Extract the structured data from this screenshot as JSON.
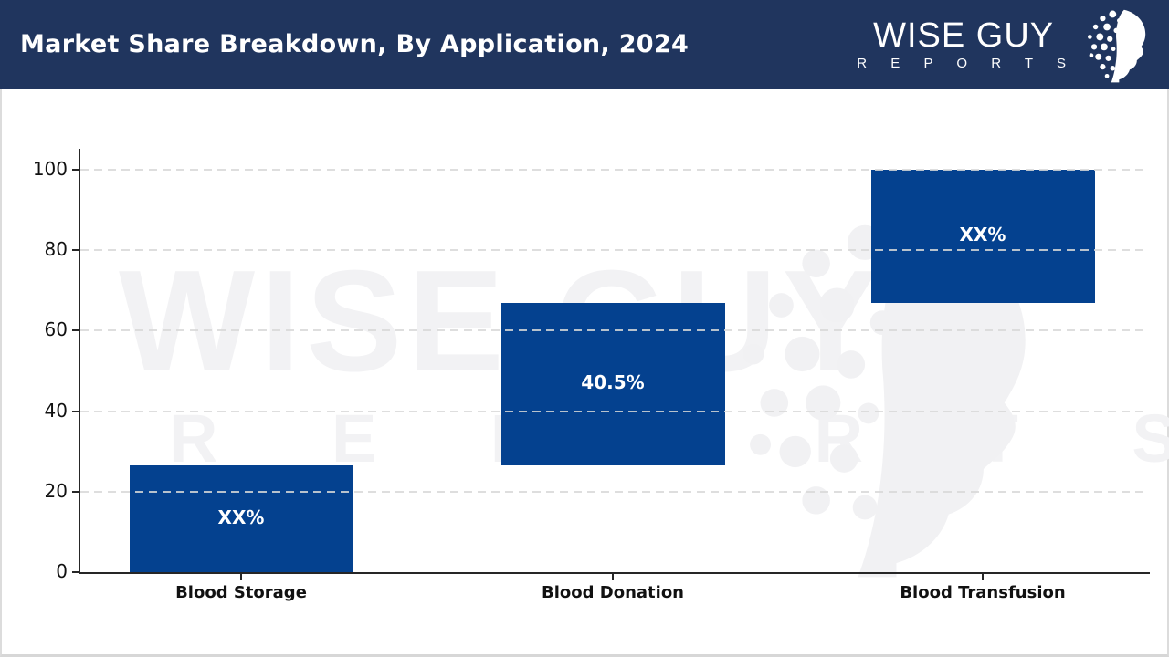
{
  "header": {
    "title": "Market Share Breakdown, By Application, 2024",
    "logo": {
      "line1": "WISE GUY",
      "line2": "R E P O R T S"
    }
  },
  "watermark": {
    "line1": "WISE GUY",
    "line2": "R E P O R T S"
  },
  "chart_data": {
    "type": "bar",
    "subtype": "floating-segment-waterfall",
    "title": "Market Share Breakdown, By Application, 2024",
    "categories": [
      "Blood Storage",
      "Blood Donation",
      "Blood Transfusion"
    ],
    "segments": [
      {
        "category": "Blood Storage",
        "start": 0,
        "end": 26.5,
        "label": "XX%"
      },
      {
        "category": "Blood Donation",
        "start": 26.5,
        "end": 67,
        "label": "40.5%"
      },
      {
        "category": "Blood Transfusion",
        "start": 67,
        "end": 100,
        "label": "XX%"
      }
    ],
    "yticks": [
      0,
      20,
      40,
      60,
      80,
      100
    ],
    "ylim": [
      0,
      105
    ],
    "xlabel": "",
    "ylabel": "",
    "grid": "dashed-horizontal-over-bars",
    "legend": "none",
    "bar_color": "#04418f",
    "bar_label_color": "#ffffff"
  },
  "colors": {
    "header_bg": "#20355e",
    "bar": "#04418f",
    "grid": "#d8d8d8",
    "axis": "#262626",
    "watermark": "#f2f2f4",
    "page_border": "#dcdcdc"
  }
}
